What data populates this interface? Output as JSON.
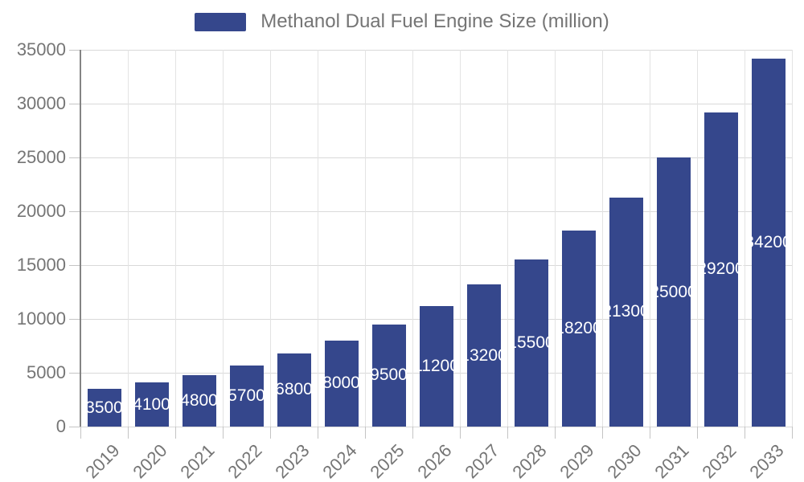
{
  "chart": {
    "colors": {
      "bar": "#35478C",
      "bar_label_text": "#ffffff",
      "axis_text": "#757575",
      "grid_h": "#d9d9d9",
      "grid_v": "#e3e3e3",
      "axis_line": "#848484",
      "tick": "#c4c4c4",
      "background": "#ffffff"
    },
    "legend": {
      "swatch": "bar-color-swatch",
      "label": "Methanol Dual Fuel Engine Size (million)"
    }
  },
  "chart_data": {
    "type": "bar",
    "title": "Methanol Dual Fuel Engine Size (million)",
    "series_name": "Methanol Dual Fuel Engine Size (million)",
    "categories": [
      "2019",
      "2020",
      "2021",
      "2022",
      "2023",
      "2024",
      "2025",
      "2026",
      "2027",
      "2028",
      "2029",
      "2030",
      "2031",
      "2032",
      "2033"
    ],
    "values": [
      3500,
      4100,
      4800,
      5700,
      6800,
      8000,
      9500,
      11200,
      13200,
      15500,
      18200,
      21300,
      25000,
      29200,
      34200
    ],
    "xlabel": "",
    "ylabel": "",
    "ylim": [
      0,
      35000
    ],
    "yticks": [
      0,
      5000,
      10000,
      15000,
      20000,
      25000,
      30000,
      35000
    ],
    "grid": true,
    "legend_position": "top",
    "bar_label_position": "inside-center",
    "bar_label_color": "white",
    "x_tick_rotation": 45
  }
}
